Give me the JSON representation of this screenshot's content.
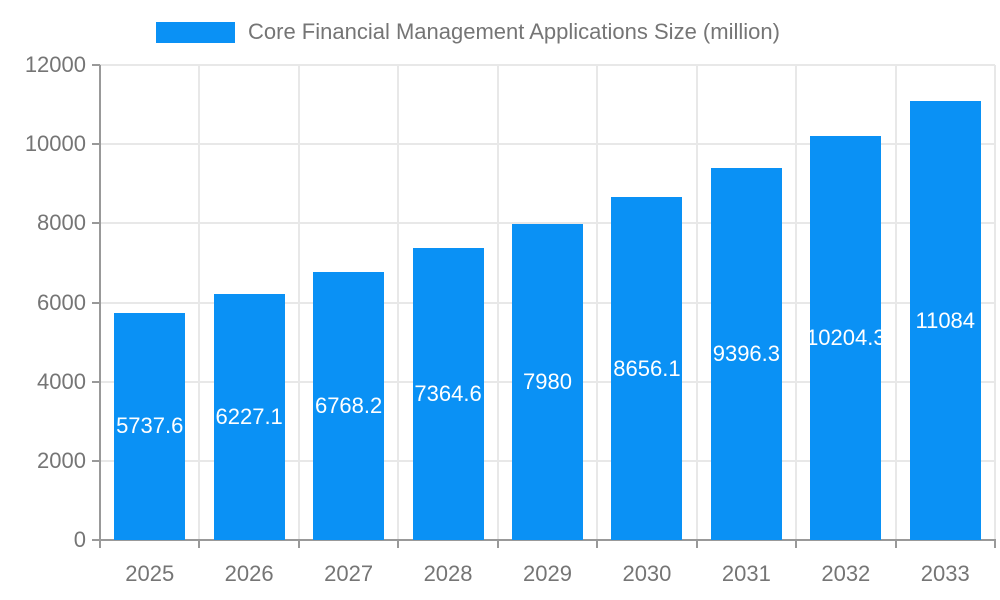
{
  "chart_data": {
    "type": "bar",
    "title": "Core Financial Management Applications Size (million)",
    "categories": [
      "2025",
      "2026",
      "2027",
      "2028",
      "2029",
      "2030",
      "2031",
      "2032",
      "2033"
    ],
    "values": [
      5737.6,
      6227.1,
      6768.2,
      7364.6,
      7980,
      8656.1,
      9396.3,
      10204.3,
      11084
    ],
    "value_labels": [
      "5737.6",
      "6227.1",
      "6768.2",
      "7364.6",
      "7980",
      "8656.1",
      "9396.3",
      "10204.3",
      "11084"
    ],
    "xlabel": "",
    "ylabel": "",
    "ylim": [
      0,
      12000
    ],
    "yticks": [
      0,
      2000,
      4000,
      6000,
      8000,
      10000,
      12000
    ],
    "ytick_labels": [
      "0",
      "2000",
      "4000",
      "6000",
      "8000",
      "10000",
      "12000"
    ],
    "grid": "on",
    "legend_position": "top",
    "colors": {
      "bar": "#0a91f5",
      "grid": "#e8e8e8",
      "axis": "#999999",
      "axis_text": "#757575",
      "legend_text": "#757575",
      "value_text": "#ffffff",
      "background": "#ffffff"
    }
  }
}
